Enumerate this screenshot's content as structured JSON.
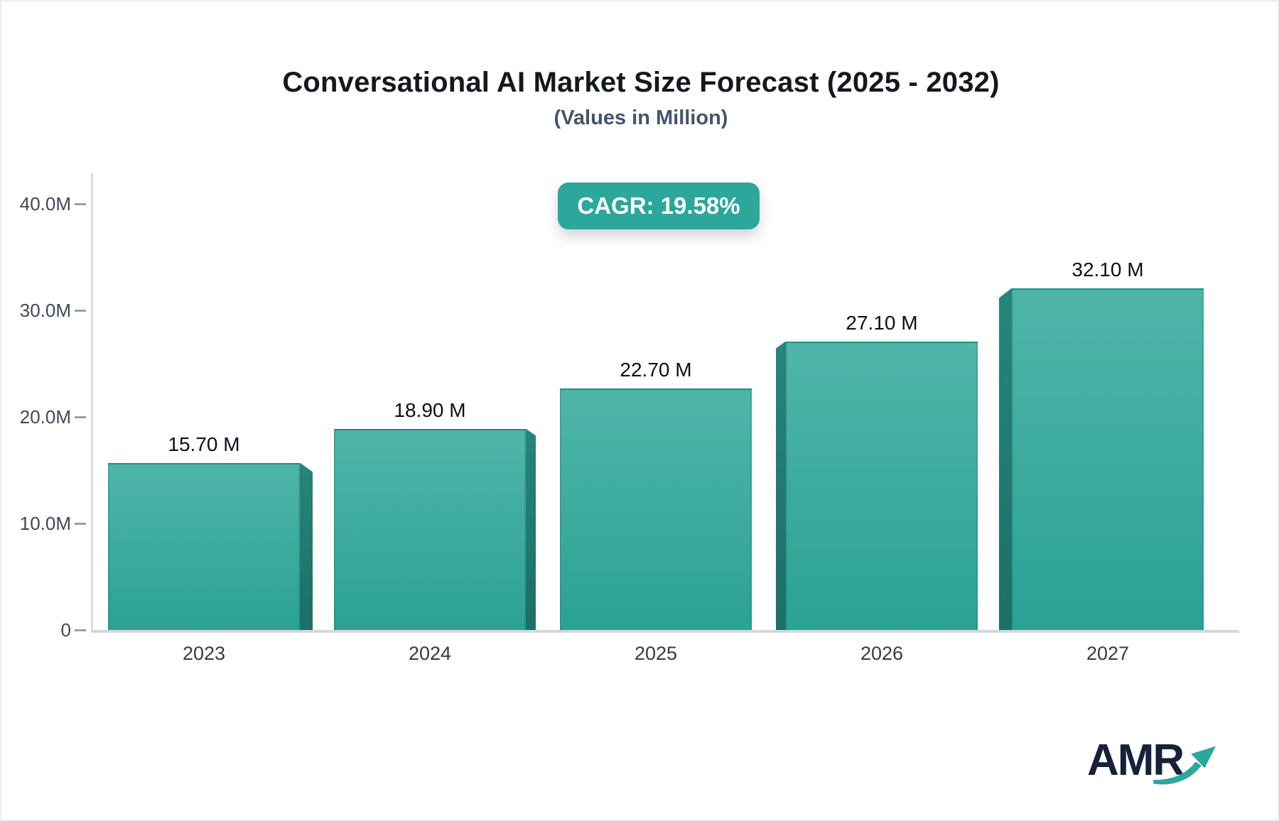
{
  "title": "Conversational AI Market Size Forecast (2025 - 2032)",
  "subtitle": "(Values in Million)",
  "badge": {
    "label": "CAGR: 19.58%",
    "bg_color": "#2BA79B",
    "text_color": "#FFFFFF"
  },
  "logo": {
    "text": "AMR",
    "text_color": "#16213A",
    "arrow_color": "#2BA79B"
  },
  "chart_data": {
    "type": "bar",
    "title": "Conversational AI Market Size Forecast (2025 - 2032)",
    "subtitle": "(Values in Million)",
    "annotation": "CAGR: 19.58%",
    "categories": [
      "2023",
      "2024",
      "2025",
      "2026",
      "2027"
    ],
    "values": [
      15.7,
      18.9,
      22.7,
      27.1,
      32.1
    ],
    "value_labels": [
      "15.70 M",
      "18.90 M",
      "22.70 M",
      "27.10 M",
      "32.10 M"
    ],
    "unit": "Million",
    "xlabel": "",
    "ylabel": "",
    "ylim": [
      0,
      40
    ],
    "ytick_values": [
      0,
      10,
      20,
      30,
      40
    ],
    "ytick_labels": [
      "0",
      "10.0M",
      "20.0M",
      "30.0M",
      "40.0M"
    ],
    "grid": false,
    "legend_position": "none",
    "bar_color_top": "#4FB5A9",
    "bar_color_bottom": "#2AA294",
    "bar_side_color_top": "#27857A",
    "bar_side_color_bottom": "#1C6F65",
    "axis_color": "#D3D7DE",
    "tick_color": "#98A0A9"
  }
}
